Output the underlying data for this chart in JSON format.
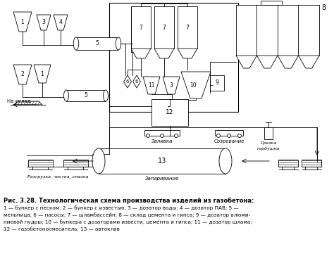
{
  "title": "Рис. 3.28. Технологическая схема производства изделий из газобетона:",
  "caption_lines": [
    "1 — бункер с песком; 2 — бункер с известью; 3 — дозатор воды; 4 — дозатор ПАВ; 5 —",
    "мельница; 6 — насосы; 7 — шламбассейн; 8 — склад цемента и гипса; 9 — дозатор алюми-",
    "ниевой пудры; 10 — бункера с дозаторами извести, цемента и гипса; 11 — дозатор шлама;",
    "12 — газобетоносмеситель; 13 — автоклав"
  ],
  "bg_color": "#ffffff",
  "line_color": "#000000",
  "label_fontsize": 5.2,
  "title_fontsize": 6.0
}
